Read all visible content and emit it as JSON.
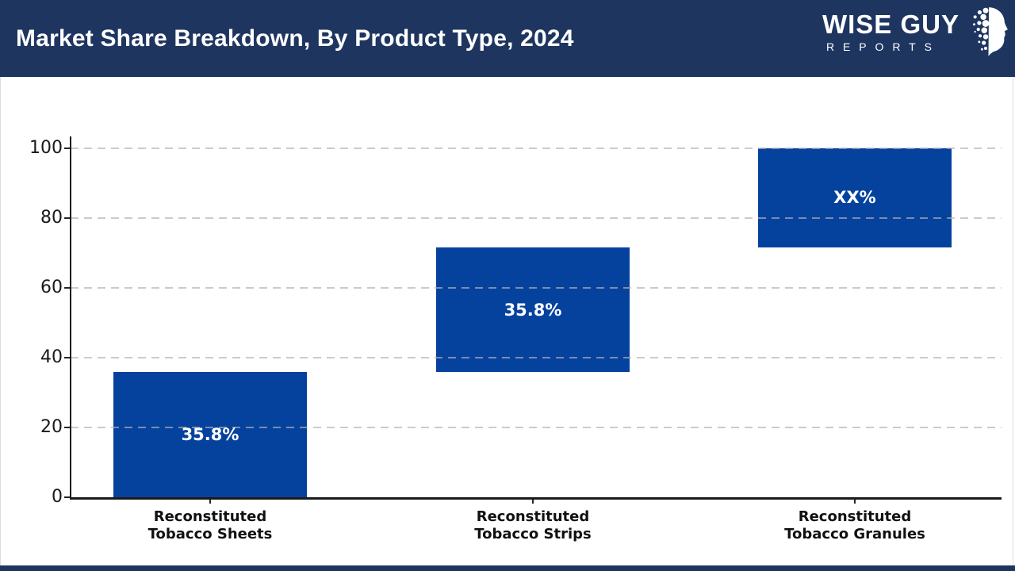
{
  "header": {
    "title": "Market Share Breakdown, By Product Type, 2024",
    "background_color": "#1e3560",
    "logo": {
      "brand": "Wise Guy Reports",
      "line1": "WISE GUY",
      "line2": "REPORTS",
      "icon": "dotted-face-profile-icon"
    }
  },
  "watermark": {
    "line1": "WISE GUY",
    "line2": "REPORTS",
    "icon": "dotted-face-profile-watermark",
    "color": "#f2f3f5"
  },
  "chart_data": {
    "type": "bar",
    "variant": "waterfall",
    "title": "Market Share Breakdown, By Product Type, 2024",
    "categories": [
      "Reconstituted Tobacco Sheets",
      "Reconstituted Tobacco Strips",
      "Reconstituted Tobacco Granules"
    ],
    "categories_lines": [
      [
        "Reconstituted",
        "Tobacco Sheets"
      ],
      [
        "Reconstituted",
        "Tobacco Strips"
      ],
      [
        "Reconstituted",
        "Tobacco Granules"
      ]
    ],
    "segments": [
      {
        "category": "Reconstituted Tobacco Sheets",
        "start": 0,
        "end": 35.8,
        "label": "35.8%"
      },
      {
        "category": "Reconstituted Tobacco Strips",
        "start": 35.8,
        "end": 71.6,
        "label": "35.8%"
      },
      {
        "category": "Reconstituted Tobacco Granules",
        "start": 71.6,
        "end": 100,
        "label": "XX%"
      }
    ],
    "ylim": [
      0,
      100
    ],
    "yticks": [
      "0",
      "20",
      "40",
      "60",
      "80",
      "100"
    ],
    "xlabel": "",
    "ylabel": "",
    "grid": "horizontal-dashed",
    "legend": "none",
    "bar_color": "#05429d",
    "bar_label_color": "#ffffff",
    "gridline_color": "#d9d9d9",
    "axis_color": "#1a1a1a"
  },
  "footer": {
    "background_color": "#1e3560"
  }
}
